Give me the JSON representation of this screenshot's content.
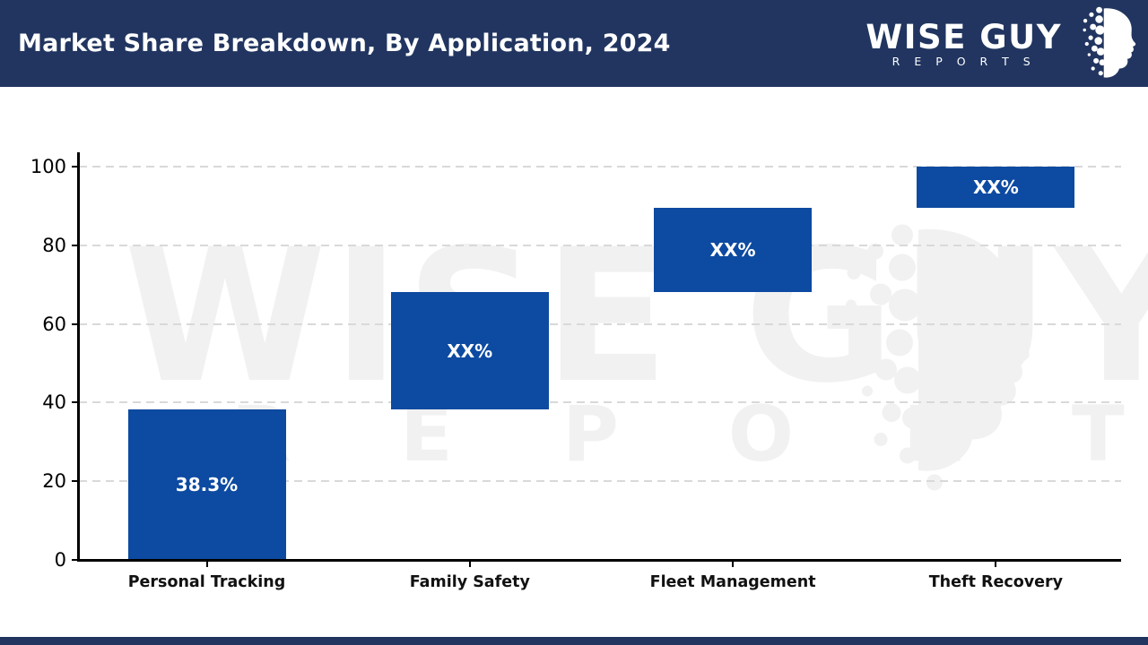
{
  "header": {
    "title": "Market Share Breakdown, By Application, 2024",
    "bg_color": "#213560",
    "logo": {
      "brand_line1": "WISE GUY",
      "brand_line2": "R E P O R T S",
      "head_icon": "dotted-face-profile-icon"
    }
  },
  "chart_data": {
    "type": "bar",
    "subtype": "waterfall",
    "title": "Market Share Breakdown, By Application, 2024",
    "categories": [
      "Personal Tracking",
      "Family Safety",
      "Fleet Management",
      "Theft Recovery"
    ],
    "series": [
      {
        "name": "Market share (%)",
        "segments": [
          {
            "category": "Personal Tracking",
            "start": 0,
            "end": 38.3,
            "label": "38.3%"
          },
          {
            "category": "Family Safety",
            "start": 38.3,
            "end": 68,
            "label": "XX%"
          },
          {
            "category": "Fleet Management",
            "start": 68,
            "end": 89.5,
            "label": "XX%"
          },
          {
            "category": "Theft Recovery",
            "start": 89.5,
            "end": 100,
            "label": "XX%"
          }
        ]
      }
    ],
    "xlabel": "",
    "ylabel": "",
    "ylim": [
      0,
      105
    ],
    "yticks": [
      0,
      20,
      40,
      60,
      80,
      100
    ],
    "grid": "horizontal-dashed",
    "legend": "none",
    "bar_color": "#0d4aa1",
    "bar_label_color": "#ffffff",
    "axis_color": "#000000",
    "gridline_color": "#d9d9d9"
  },
  "watermark": {
    "line1": "WISE GUY",
    "line2": "R E P O R T S",
    "head_icon": "dotted-face-profile-watermark"
  },
  "footer": {
    "bg_color": "#213560"
  }
}
